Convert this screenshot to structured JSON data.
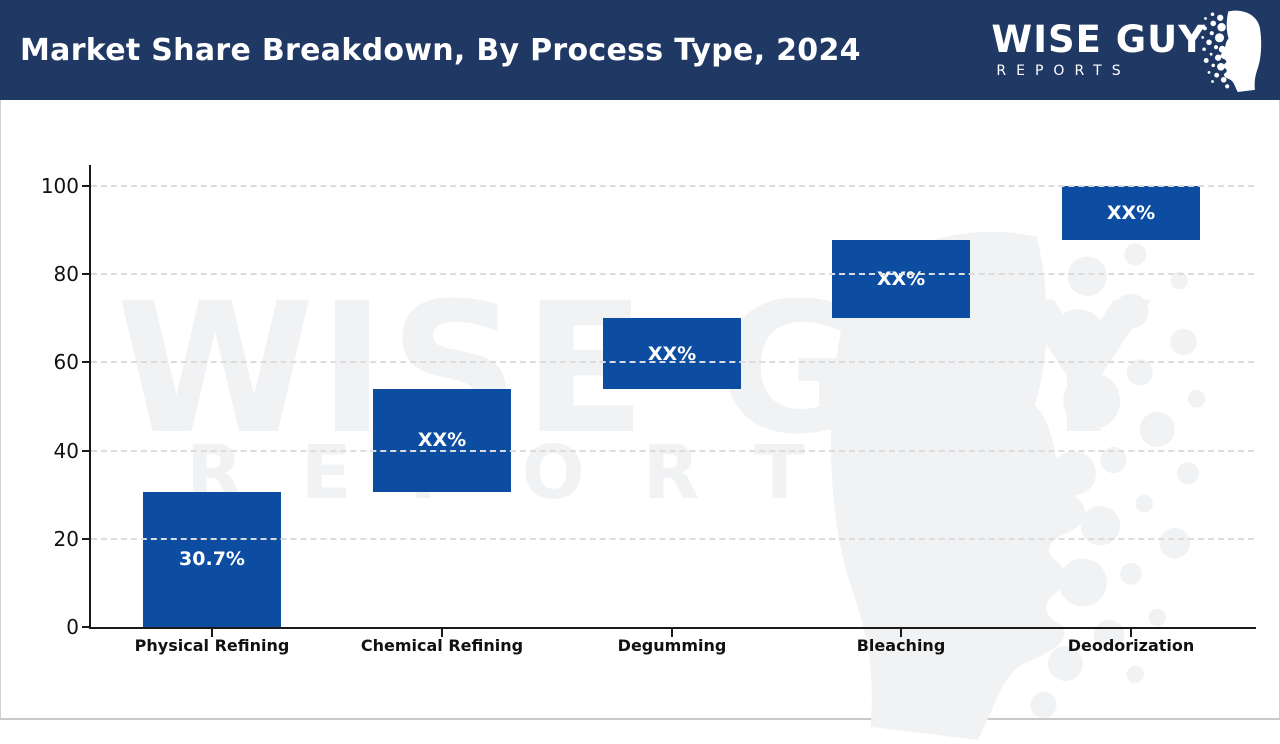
{
  "header": {
    "title": "Market Share Breakdown, By Process Type, 2024",
    "logo": {
      "line1": "WISE GUY",
      "line2": "REPORTS"
    },
    "bg_color": "#1f3864"
  },
  "watermark": {
    "line1": "WISE GUY",
    "line2": "REPORTS"
  },
  "chart_data": {
    "type": "bar",
    "subtype": "waterfall",
    "title": "Market Share Breakdown, By Process Type, 2024",
    "xlabel": "",
    "ylabel": "",
    "ylim": [
      0,
      100
    ],
    "yticks": [
      0,
      20,
      40,
      60,
      80,
      100
    ],
    "grid": "horizontal dashed, drawn above bars",
    "legend": "none",
    "bar_color": "#0c4da2",
    "label_color": "#ffffff",
    "categories": [
      "Physical Refining",
      "Chemical Refining",
      "Degumming",
      "Bleaching",
      "Deodorization"
    ],
    "segments": [
      {
        "category": "Physical Refining",
        "start": 0,
        "end": 30.7,
        "label": "30.7%"
      },
      {
        "category": "Chemical Refining",
        "start": 30.7,
        "end": 53.9,
        "label": "XX%"
      },
      {
        "category": "Degumming",
        "start": 53.9,
        "end": 70.1,
        "label": "XX%"
      },
      {
        "category": "Bleaching",
        "start": 70.1,
        "end": 87.7,
        "label": "XX%"
      },
      {
        "category": "Deodorization",
        "start": 87.7,
        "end": 100,
        "label": "XX%"
      }
    ]
  }
}
